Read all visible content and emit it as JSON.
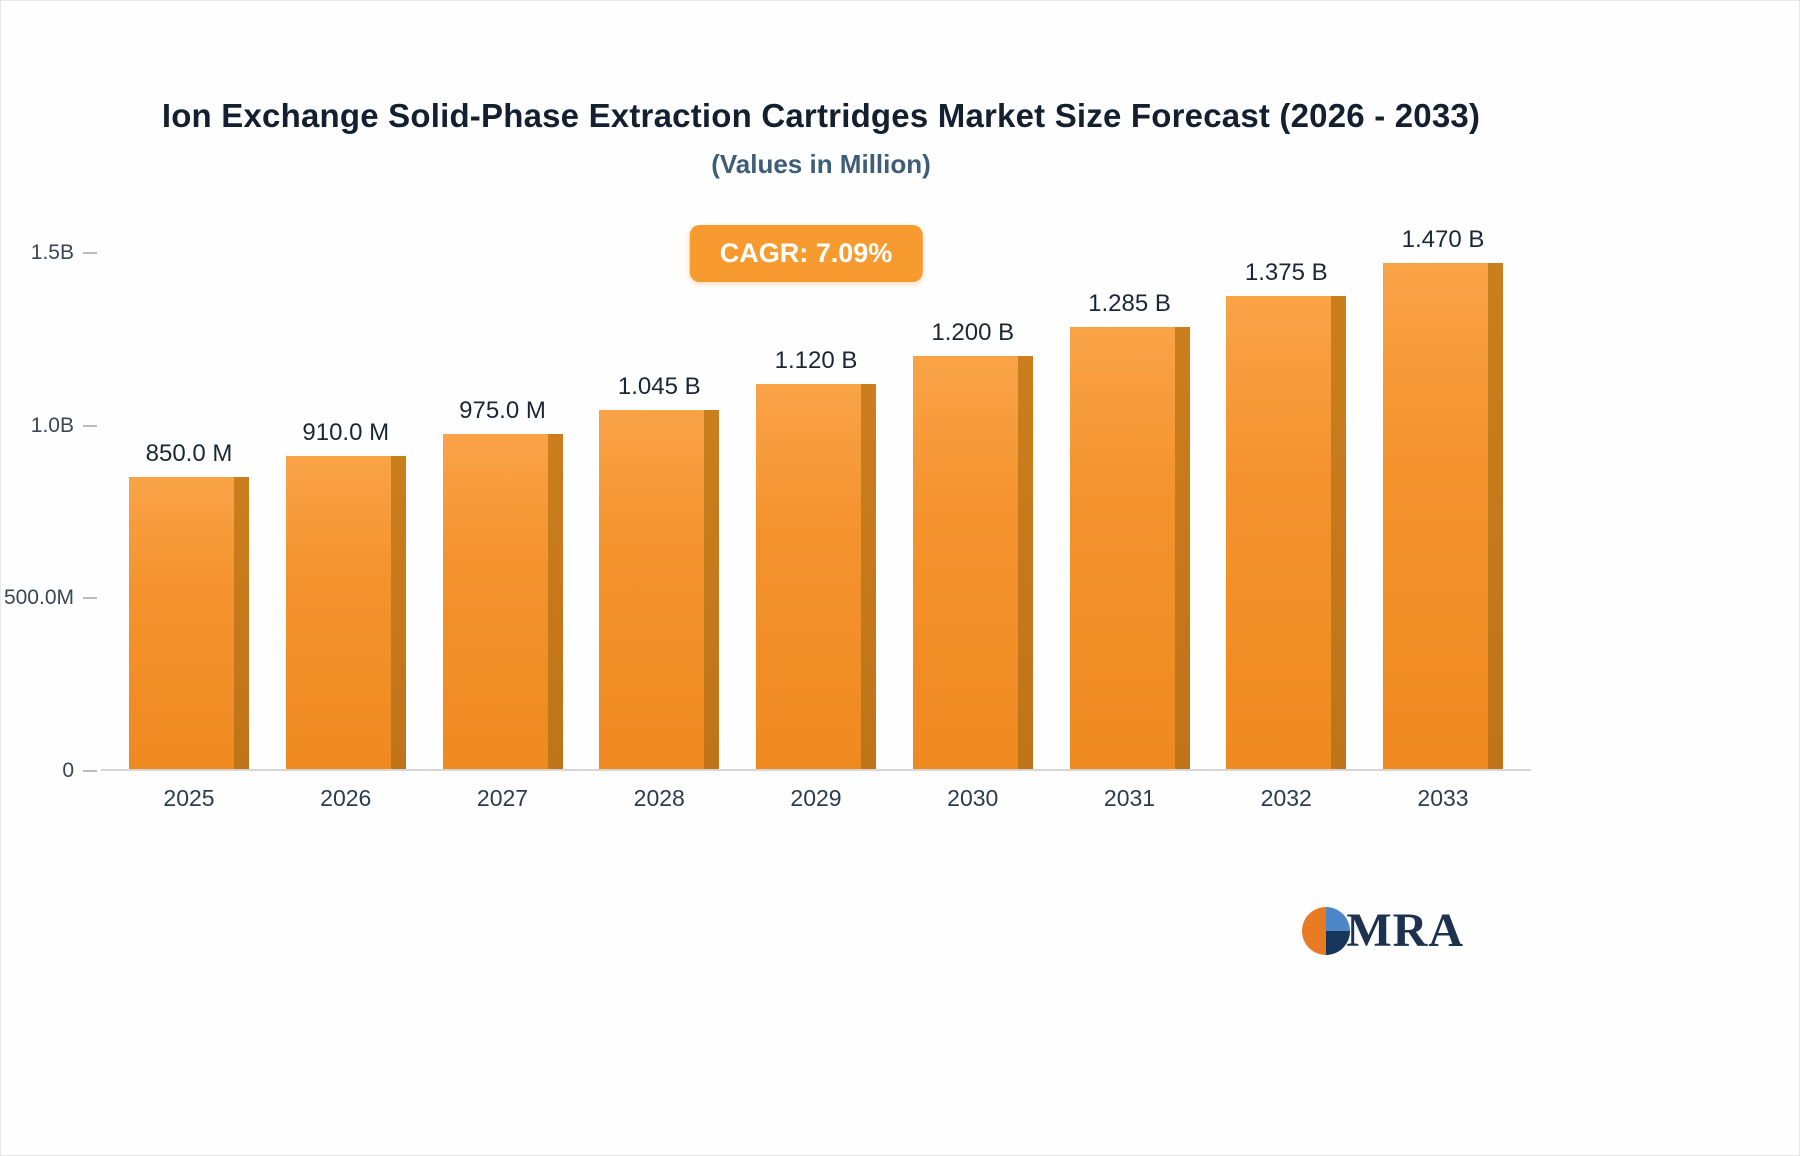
{
  "title": "Ion Exchange Solid-Phase Extraction Cartridges Market Size Forecast (2026 - 2033)",
  "subtitle": "(Values in Million)",
  "cagr_badge": "CAGR: 7.09%",
  "logo": {
    "text": "MRA"
  },
  "colors": {
    "bar_face_top": "#f9a347",
    "bar_face_bottom": "#ef8a20",
    "bar_side": "#c0741a",
    "badge_bg": "#f79b30",
    "title_navy": "#14202f",
    "subtitle_slate": "#3e5d77",
    "logo_orange": "#e87a24",
    "logo_blue": "#4d87c7",
    "logo_navy": "#16365c"
  },
  "chart_data": {
    "type": "bar",
    "title": "Ion Exchange Solid-Phase Extraction Cartridges Market Size Forecast (2026 - 2033)",
    "subtitle": "(Values in Million)",
    "annotation": "CAGR: 7.09%",
    "categories": [
      "2025",
      "2026",
      "2027",
      "2028",
      "2029",
      "2030",
      "2031",
      "2032",
      "2033"
    ],
    "values": [
      850,
      910,
      975,
      1045,
      1120,
      1200,
      1285,
      1375,
      1470
    ],
    "value_labels": [
      "850.0 M",
      "910.0 M",
      "975.0 M",
      "1.045 B",
      "1.120 B",
      "1.200 B",
      "1.285 B",
      "1.375 B",
      "1.470 B"
    ],
    "xlabel": "",
    "ylabel": "",
    "ylim": [
      0,
      1500
    ],
    "yticks": [
      {
        "value": 0,
        "label": "0"
      },
      {
        "value": 500,
        "label": "500.0M"
      },
      {
        "value": 1000,
        "label": "1.0B"
      },
      {
        "value": 1500,
        "label": "1.5B"
      }
    ],
    "grid": false,
    "legend": false
  }
}
